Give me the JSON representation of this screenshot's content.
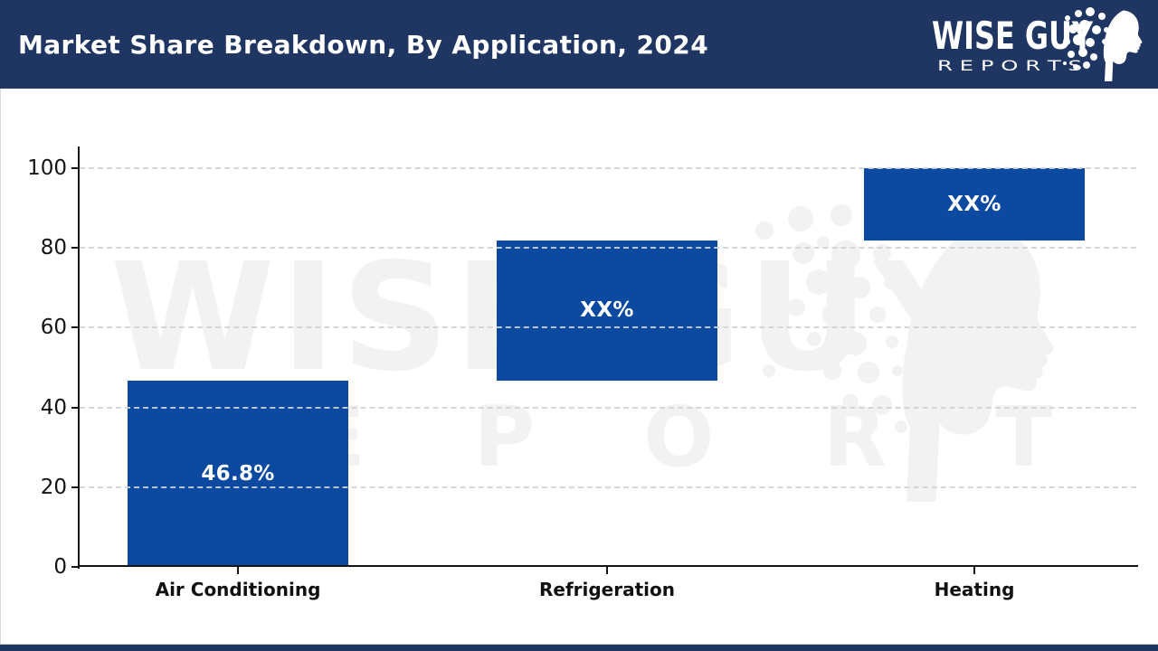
{
  "header": {
    "title": "Market Share Breakdown, By Application, 2024",
    "logo": {
      "name": "WISE GUY",
      "sub": "R E P O R T S"
    }
  },
  "watermark": {
    "line1": "WISE GUY",
    "line2": "R E P O R T S"
  },
  "chart_data": {
    "type": "bar",
    "variant": "floating-segment waterfall",
    "title": "Market Share Breakdown, By Application, 2024",
    "categories": [
      "Air Conditioning",
      "Refrigeration",
      "Heating"
    ],
    "segments": [
      {
        "category": "Air Conditioning",
        "start": 0,
        "end": 46.8,
        "label": "46.8%"
      },
      {
        "category": "Refrigeration",
        "start": 46.8,
        "end": 81.9,
        "label": "XX%"
      },
      {
        "category": "Heating",
        "start": 81.9,
        "end": 100,
        "label": "XX%"
      }
    ],
    "xlabel": "",
    "ylabel": "",
    "yticks": [
      0,
      20,
      40,
      60,
      80,
      100
    ],
    "ylim": [
      0,
      104.7
    ],
    "grid": "horizontal dashed, drawn above bars",
    "legend": "none",
    "bar_color": "#0b4aa0",
    "bar_label_color": "#ffffff"
  },
  "colors": {
    "header_bg": "#1f3562",
    "footer_bg": "#1f3562",
    "bar": "#0b4aa0",
    "grid": "#d2d2d2",
    "axis": "#151515",
    "watermark": "#f2f2f2",
    "title_text": "#ffffff"
  }
}
